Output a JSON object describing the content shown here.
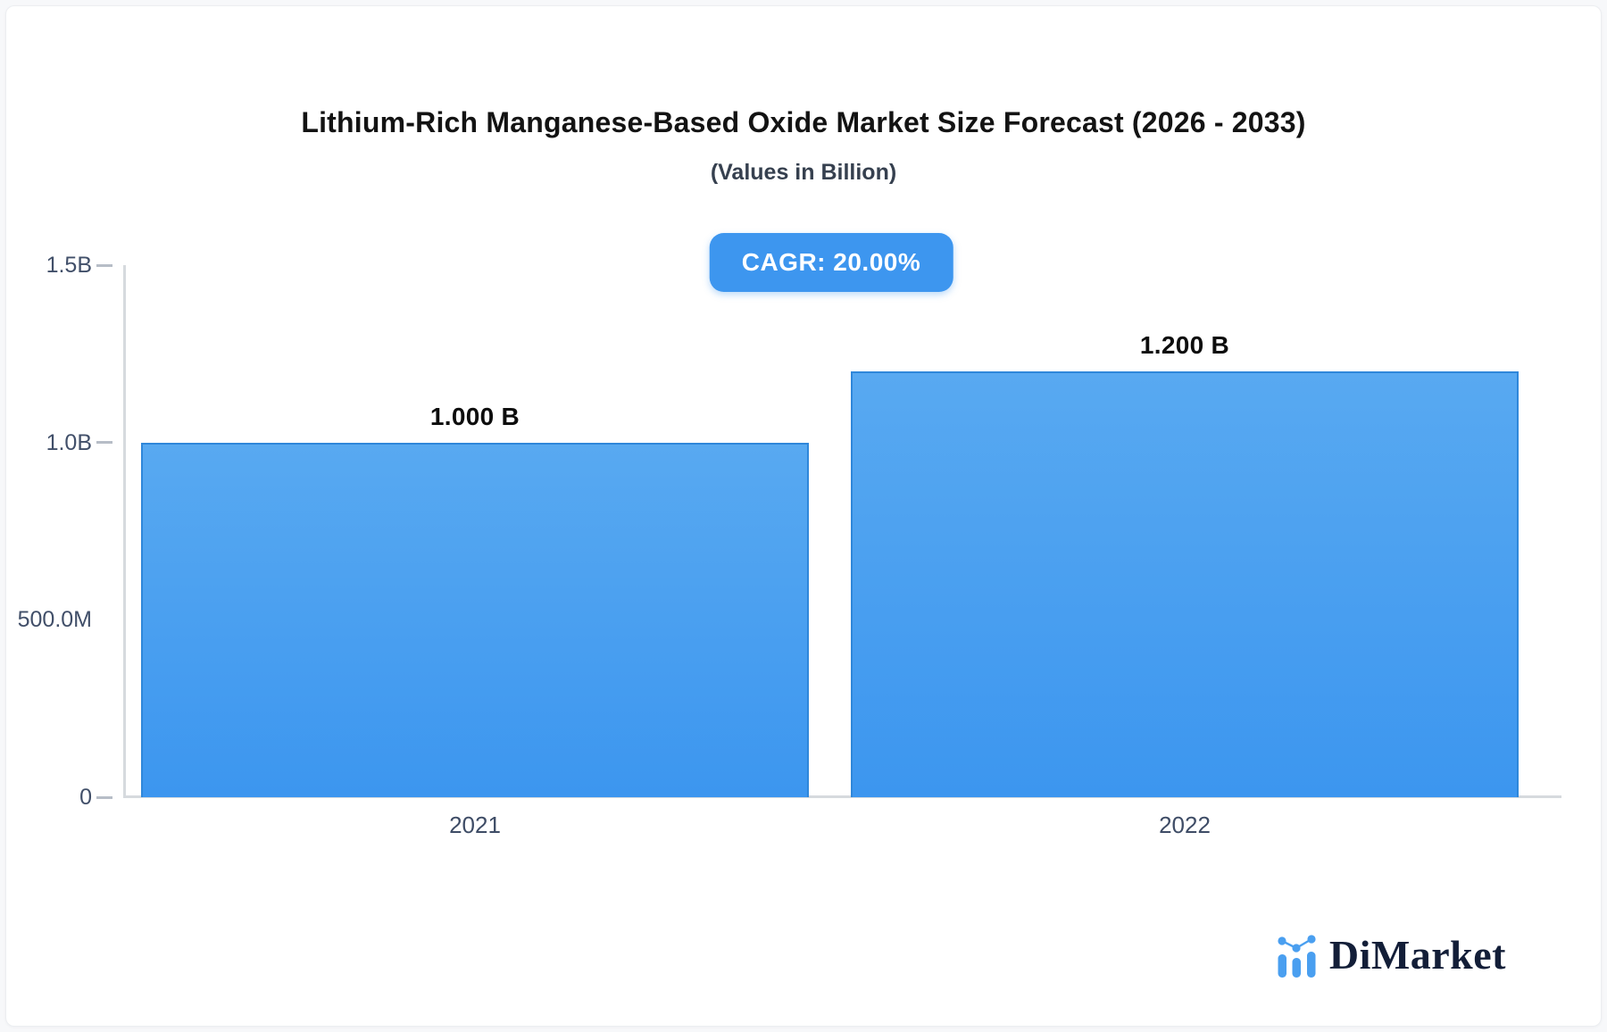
{
  "page": {
    "watermark": {
      "brand": "DiMarket",
      "icon": "bar-chart-logo-icon"
    }
  },
  "chart_data": {
    "type": "bar",
    "title": "Lithium-Rich Manganese-Based Oxide Market Size Forecast (2026 - 2033)",
    "subtitle": "(Values in Billion)",
    "badge": "CAGR: 20.00%",
    "categories": [
      "2021",
      "2022"
    ],
    "values": [
      1.0,
      1.2
    ],
    "value_labels": [
      "1.000 B",
      "1.200 B"
    ],
    "unit": "Billion",
    "ylim": [
      0,
      1.5
    ],
    "yticks": [
      {
        "label": "1.5B",
        "value": 1.5,
        "tick": true
      },
      {
        "label": "1.0B",
        "value": 1.0,
        "tick": true
      },
      {
        "label": "500.0M",
        "value": 0.5,
        "tick": false
      },
      {
        "label": "0",
        "value": 0.0,
        "tick": true
      }
    ],
    "grid": false,
    "legend_position": "none",
    "colors": {
      "bar_top": "#58a9f1",
      "bar_bottom": "#3c96ef",
      "bar_border": "#2f87da",
      "badge_bg": "#3d96ef",
      "axis_line": "#d6dade",
      "tick": "#b7bdc7",
      "tick_label": "#414f69",
      "logo_blue": "#4a9ff0",
      "logo_text": "#131e38"
    }
  }
}
